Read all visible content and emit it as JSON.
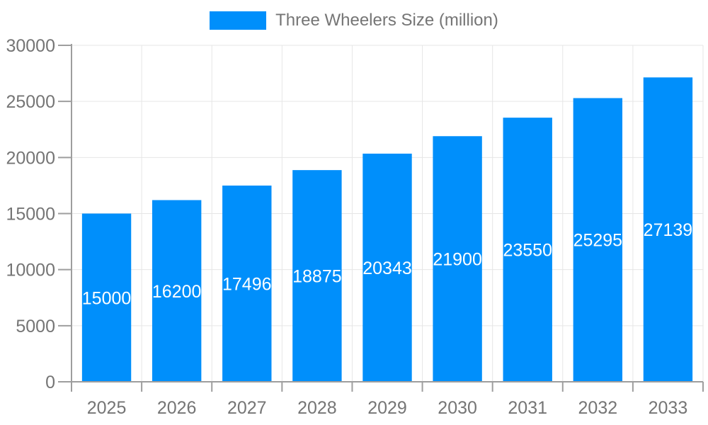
{
  "chart_data": {
    "type": "bar",
    "title": "Three Wheelers Size (million)",
    "legend": {
      "label": "Three Wheelers Size (million)",
      "position": "top",
      "marker_color": "#008FFB"
    },
    "categories": [
      "2025",
      "2026",
      "2027",
      "2028",
      "2029",
      "2030",
      "2031",
      "2032",
      "2033"
    ],
    "values": [
      15000,
      16200,
      17496,
      18875,
      20343,
      21900,
      23550,
      25295,
      27139
    ],
    "data_labels": [
      "15000",
      "16200",
      "17496",
      "18875",
      "20343",
      "21900",
      "23550",
      "25295",
      "27139"
    ],
    "xlabel": "",
    "ylabel": "",
    "ylim": [
      0,
      30000
    ],
    "yticks": [
      0,
      5000,
      10000,
      15000,
      20000,
      25000,
      30000
    ],
    "ytick_labels": [
      "0",
      "5000",
      "10000",
      "15000",
      "20000",
      "25000",
      "30000"
    ],
    "grid": {
      "horizontal": true,
      "vertical": true
    },
    "bar_value_label_position": "inside-center",
    "colors": {
      "bar": "#008FFB",
      "bar_label": "#ffffff",
      "axis": "#9e9e9e",
      "gridline": "#e6e6e6",
      "tick_label": "#757575",
      "legend_text": "#757575",
      "background": "#ffffff"
    }
  }
}
